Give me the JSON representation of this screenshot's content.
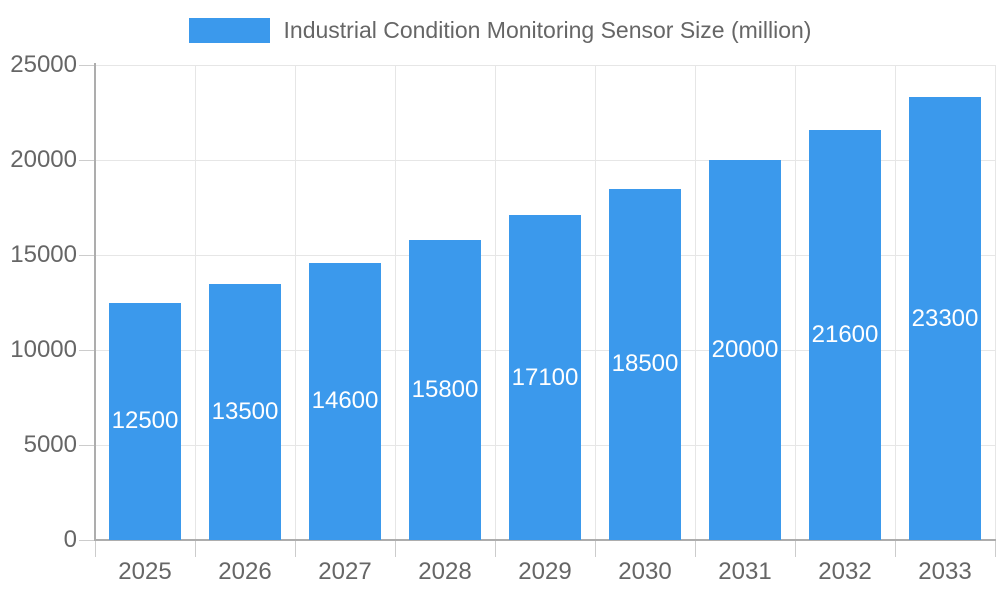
{
  "legend": {
    "label": "Industrial Condition Monitoring Sensor Size (million)"
  },
  "colors": {
    "bar": "#3B99EC",
    "axis_line": "#ADADAD",
    "grid_line": "#E6E6E6",
    "tick_line": "#CCCCCC",
    "axis_text": "#666666",
    "value_text": "#FFFFFF",
    "background": "#FFFFFF"
  },
  "chart_data": {
    "type": "bar",
    "title": "Industrial Condition Monitoring Sensor Size (million)",
    "categories": [
      "2025",
      "2026",
      "2027",
      "2028",
      "2029",
      "2030",
      "2031",
      "2032",
      "2033"
    ],
    "values": [
      12500,
      13500,
      14600,
      15800,
      17100,
      18500,
      20000,
      21600,
      23300
    ],
    "value_labels": [
      "12500",
      "13500",
      "14600",
      "15800",
      "17100",
      "18500",
      "20000",
      "21600",
      "23300"
    ],
    "xlabel": "",
    "ylabel": "",
    "ylim": [
      0,
      25000
    ],
    "yticks": [
      0,
      5000,
      10000,
      15000,
      20000,
      25000
    ],
    "ytick_labels": [
      "0",
      "5000",
      "10000",
      "15000",
      "20000",
      "25000"
    ],
    "grid": true,
    "legend_position": "top-center",
    "value_label_position": "inside-middle"
  }
}
